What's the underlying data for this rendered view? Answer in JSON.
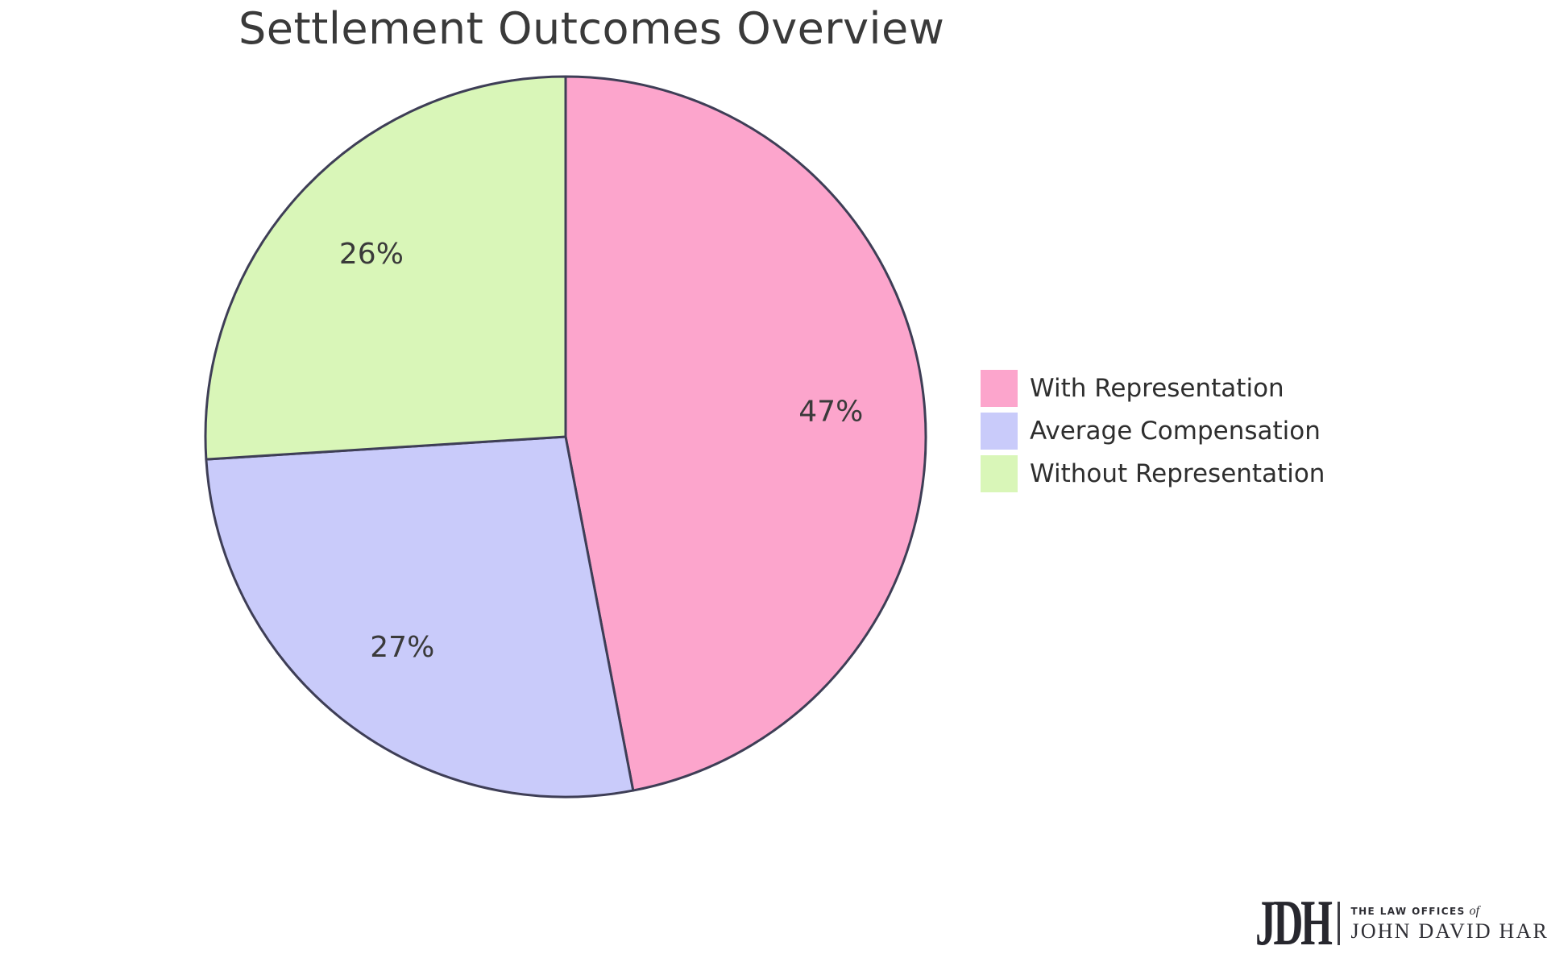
{
  "chart_data": {
    "type": "pie",
    "title": "Settlement Outcomes Overview",
    "slices": [
      {
        "label": "With Representation",
        "value": 47,
        "percent_text": "47%",
        "color": "#FCA5CC"
      },
      {
        "label": "Average Compensation",
        "value": 27,
        "percent_text": "27%",
        "color": "#C9CBFA"
      },
      {
        "label": "Without Representation",
        "value": 26,
        "percent_text": "26%",
        "color": "#D9F6B8"
      }
    ],
    "start_angle_deg": 0,
    "direction": "clockwise",
    "legend_position": "right",
    "stroke_color": "#3E3E56",
    "stroke_width": 3,
    "label_color": "#3A3A3A",
    "title_color": "#3A3A3A",
    "background_color": "#FFFFFF"
  },
  "logo": {
    "monogram": "JDH",
    "tagline_small": "THE LAW OFFICES",
    "tagline_of": "of",
    "name": "JOHN DAVID HART"
  }
}
